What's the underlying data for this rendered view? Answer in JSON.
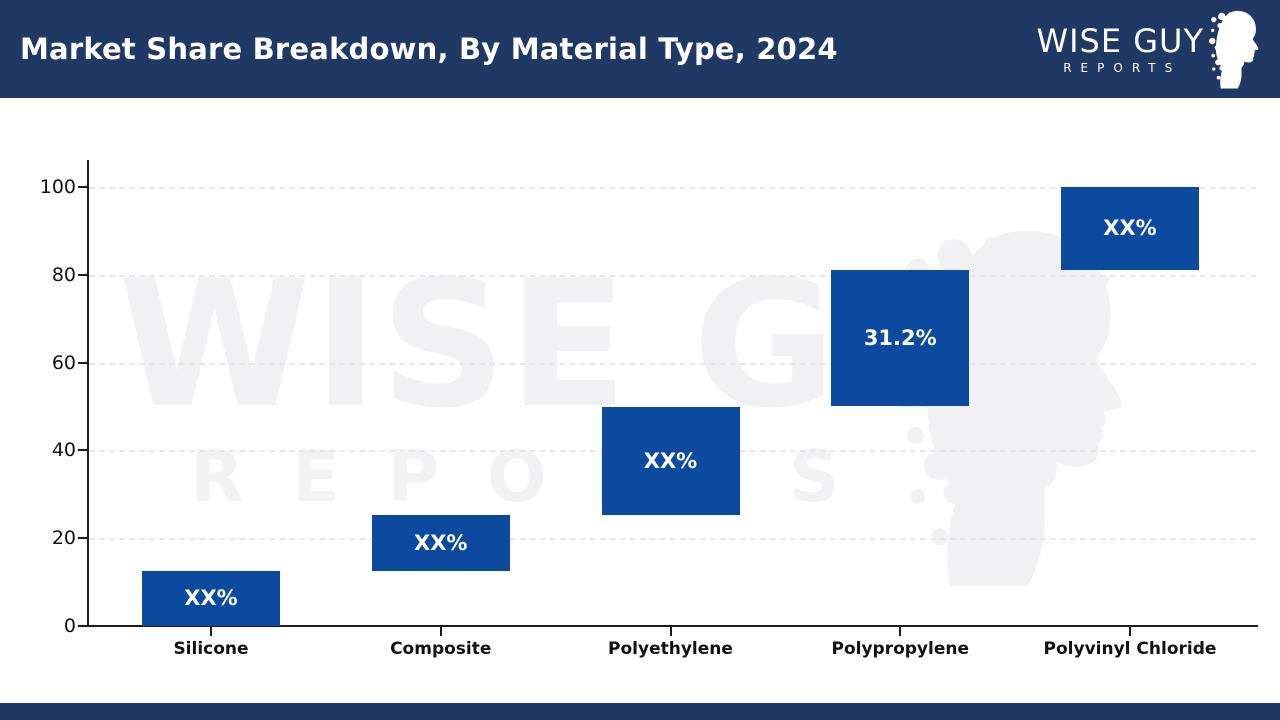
{
  "header": {
    "title": "Market Share Breakdown, By Material Type, 2024",
    "logo": {
      "line1": "WISE GUY",
      "line2": "REPORTS"
    }
  },
  "watermark": {
    "line1": "WISE GUY",
    "line2": "REPORTS"
  },
  "colors": {
    "header_navy": "#1f3864",
    "bar_blue": "#0b4a9f",
    "gridline": "#e7e7ea",
    "axis": "#1c1c1c",
    "watermark": "#f1f1f4"
  },
  "chart_data": {
    "type": "bar",
    "subtype": "waterfall",
    "title": "Market Share Breakdown, By Material Type, 2024",
    "xlabel": "",
    "ylabel": "",
    "categories": [
      "Silicone",
      "Composite",
      "Polyethylene",
      "Polypropylene",
      "Polyvinyl Chloride"
    ],
    "bars": [
      {
        "category": "Silicone",
        "start": 0,
        "end": 12.6,
        "label": "XX%"
      },
      {
        "category": "Composite",
        "start": 12.6,
        "end": 25.2,
        "label": "XX%"
      },
      {
        "category": "Polyethylene",
        "start": 25.2,
        "end": 50.0,
        "label": "XX%"
      },
      {
        "category": "Polypropylene",
        "start": 50.0,
        "end": 81.2,
        "label": "31.2%"
      },
      {
        "category": "Polyvinyl Chloride",
        "start": 81.2,
        "end": 100.0,
        "label": "XX%"
      }
    ],
    "yticks": [
      0,
      20,
      40,
      60,
      80,
      100
    ],
    "ylim": [
      0,
      106
    ],
    "grid": "horizontal-dashed",
    "legend": "none",
    "bar_color": "#0b4a9f",
    "value_label_color": "#ffffff"
  }
}
